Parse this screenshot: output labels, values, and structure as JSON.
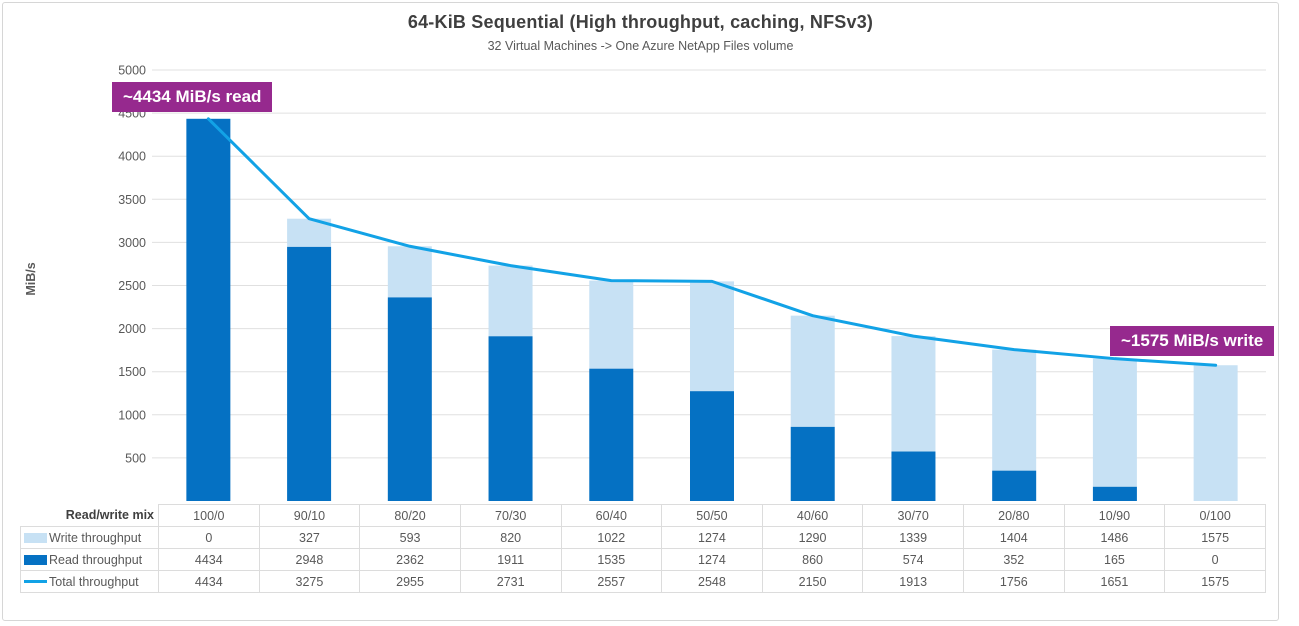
{
  "title": "64-KiB Sequential (High throughput, caching, NFSv3)",
  "subtitle": "32 Virtual Machines -> One Azure NetApp Files volume",
  "annotations": {
    "read_peak": "~4434 MiB/s read",
    "write_peak": "~1575 MiB/s write"
  },
  "colors": {
    "read_bar": "#0571c3",
    "write_bar": "#c7e1f4",
    "total_line": "#12a2e6",
    "callout_bg": "#96298e",
    "gridline": "#e0e0e0",
    "axis_text": "#595959"
  },
  "chart_data": {
    "type": "combo-stacked-bar-line",
    "title": "64-KiB Sequential (High throughput, caching, NFSv3)",
    "subtitle": "32 Virtual Machines -> One Azure NetApp Files volume",
    "xlabel": "Read/write mix",
    "ylabel": "MiB/s",
    "ylim": [
      0,
      5000
    ],
    "yticks": [
      500,
      1000,
      1500,
      2000,
      2500,
      3000,
      3500,
      4000,
      4500,
      5000
    ],
    "grid": "horizontal",
    "legend_position": "table-left",
    "row_header": "Read/write mix",
    "categories": [
      "100/0",
      "90/10",
      "80/20",
      "70/30",
      "60/40",
      "50/50",
      "40/60",
      "30/70",
      "20/80",
      "10/90",
      "0/100"
    ],
    "series": [
      {
        "name": "Write throughput",
        "role": "write",
        "render": "stacked-bar-upper",
        "values": [
          0,
          327,
          593,
          820,
          1022,
          1274,
          1290,
          1339,
          1404,
          1486,
          1575
        ]
      },
      {
        "name": "Read throughput",
        "role": "read",
        "render": "stacked-bar-lower",
        "values": [
          4434,
          2948,
          2362,
          1911,
          1535,
          1274,
          860,
          574,
          352,
          165,
          0
        ]
      },
      {
        "name": "Total throughput",
        "role": "total",
        "render": "line",
        "values": [
          4434,
          3275,
          2955,
          2731,
          2557,
          2548,
          2150,
          1913,
          1756,
          1651,
          1575
        ]
      }
    ]
  }
}
